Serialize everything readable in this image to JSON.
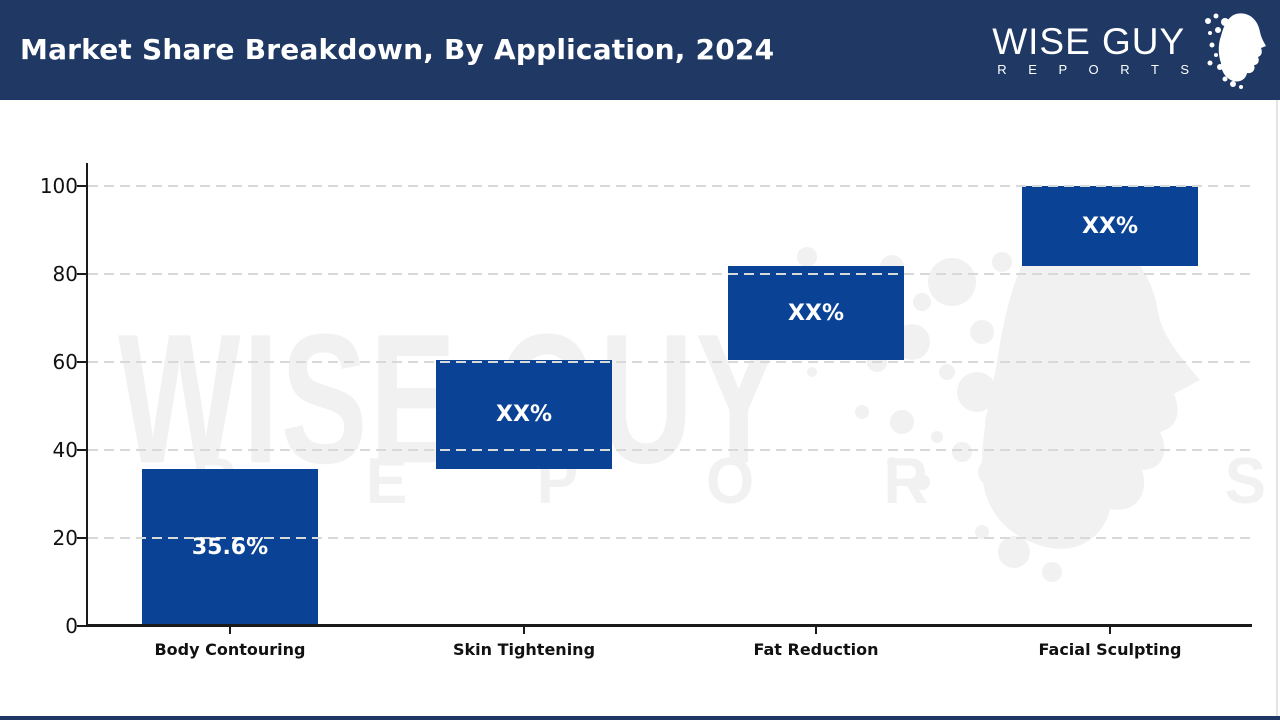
{
  "header": {
    "title": "Market Share Breakdown, By Application, 2024",
    "logo": {
      "main": "WISE GUY",
      "sub": "R E P O R T S"
    }
  },
  "watermark": {
    "main": "WISE GUY",
    "sub": "R E P O R T S"
  },
  "chart_data": {
    "type": "bar",
    "subtype": "floating-waterfall",
    "title": "Market Share Breakdown, By Application, 2024",
    "categories": [
      "Body Contouring",
      "Skin Tightening",
      "Fat Reduction",
      "Facial Sculpting"
    ],
    "series": [
      {
        "name": "Market Share",
        "segments": [
          {
            "category": "Body Contouring",
            "start": 0,
            "end": 35.6,
            "label": "35.6%"
          },
          {
            "category": "Skin Tightening",
            "start": 35.6,
            "end": 60.4,
            "label": "XX%"
          },
          {
            "category": "Fat Reduction",
            "start": 60.4,
            "end": 81.8,
            "label": "XX%"
          },
          {
            "category": "Facial Sculpting",
            "start": 81.8,
            "end": 100,
            "label": "XX%"
          }
        ]
      }
    ],
    "xlabel": "",
    "ylabel": "",
    "ylim": [
      0,
      105
    ],
    "yticks": [
      0,
      20,
      40,
      60,
      80,
      100
    ],
    "grid": {
      "horizontal": true,
      "style": "dashed",
      "color": "#d9d9d9",
      "drawn_over_bars": true
    },
    "legend": "none",
    "bar_color": "#0a4296",
    "bar_label_color": "#ffffff"
  },
  "colors": {
    "header_bg": "#1f3864",
    "footer_bg": "#1f3864",
    "bar": "#0a4296",
    "title_text": "#ffffff",
    "axis": "#1a1a1a",
    "grid": "#d9d9d9",
    "watermark": "#f1f1f2"
  }
}
